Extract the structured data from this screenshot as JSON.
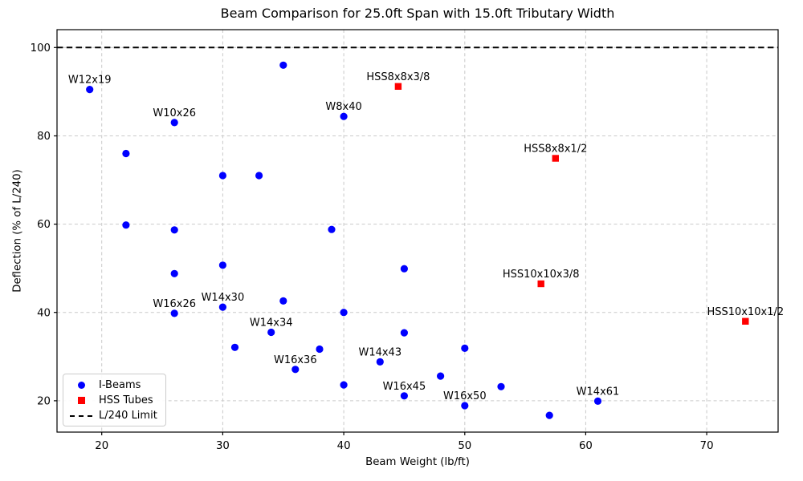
{
  "chart_data": {
    "type": "scatter",
    "title": "Beam Comparison for 25.0ft Span with 15.0ft Tributary Width",
    "xlabel": "Beam Weight (lb/ft)",
    "ylabel": "Deflection (% of L/240)",
    "xlim": [
      16.3,
      75.9
    ],
    "ylim": [
      12.9,
      104.05
    ],
    "xticks": [
      20,
      30,
      40,
      50,
      60,
      70
    ],
    "yticks": [
      20,
      40,
      60,
      80,
      100
    ],
    "grid": true,
    "grid_style": "dashed",
    "limit_line": {
      "y": 100,
      "label": "L/240 Limit",
      "color": "#000000",
      "style": "dashed"
    },
    "legend": {
      "position": "lower-left",
      "entries": [
        "I-Beams",
        "HSS Tubes",
        "L/240 Limit"
      ]
    },
    "series": [
      {
        "name": "I-Beams",
        "marker": "circle",
        "color": "#0000ff",
        "points": [
          {
            "x": 19,
            "y": 90.5,
            "label": "W12x19"
          },
          {
            "x": 22,
            "y": 76.0
          },
          {
            "x": 26,
            "y": 83.0,
            "label": "W10x26"
          },
          {
            "x": 22,
            "y": 59.8
          },
          {
            "x": 26,
            "y": 58.7
          },
          {
            "x": 30,
            "y": 71.0
          },
          {
            "x": 33,
            "y": 71.0
          },
          {
            "x": 35,
            "y": 96.0
          },
          {
            "x": 39,
            "y": 58.8
          },
          {
            "x": 40,
            "y": 84.4,
            "label": "W8x40"
          },
          {
            "x": 26,
            "y": 48.8
          },
          {
            "x": 30,
            "y": 50.7
          },
          {
            "x": 26,
            "y": 39.8,
            "label": "W16x26"
          },
          {
            "x": 30,
            "y": 41.2,
            "label": "W14x30"
          },
          {
            "x": 35,
            "y": 42.6
          },
          {
            "x": 40,
            "y": 40.0
          },
          {
            "x": 34,
            "y": 35.5,
            "label": "W14x34"
          },
          {
            "x": 31,
            "y": 32.1
          },
          {
            "x": 38,
            "y": 31.7
          },
          {
            "x": 36,
            "y": 27.1,
            "label": "W16x36"
          },
          {
            "x": 43,
            "y": 28.8,
            "label": "W14x43"
          },
          {
            "x": 40,
            "y": 23.6
          },
          {
            "x": 45,
            "y": 49.9
          },
          {
            "x": 45,
            "y": 35.4
          },
          {
            "x": 50,
            "y": 31.9
          },
          {
            "x": 48,
            "y": 25.6
          },
          {
            "x": 45,
            "y": 21.1,
            "label": "W16x45"
          },
          {
            "x": 53,
            "y": 23.2
          },
          {
            "x": 50,
            "y": 18.9,
            "label": "W16x50"
          },
          {
            "x": 61,
            "y": 19.9,
            "label": "W14x61"
          },
          {
            "x": 57,
            "y": 16.7
          }
        ]
      },
      {
        "name": "HSS Tubes",
        "marker": "square",
        "color": "#ff0000",
        "points": [
          {
            "x": 44.5,
            "y": 91.2,
            "label": "HSS8x8x3/8"
          },
          {
            "x": 57.5,
            "y": 74.9,
            "label": "HSS8x8x1/2"
          },
          {
            "x": 56.3,
            "y": 46.5,
            "label": "HSS10x10x3/8"
          },
          {
            "x": 73.2,
            "y": 38.0,
            "label": "HSS10x10x1/2"
          }
        ]
      }
    ]
  },
  "colors": {
    "background": "#ffffff",
    "grid": "#c9c9c9",
    "axis": "#000000",
    "i_beam": "#0000ff",
    "hss": "#ff0000",
    "limit": "#000000",
    "legend_border": "#cccccc"
  }
}
